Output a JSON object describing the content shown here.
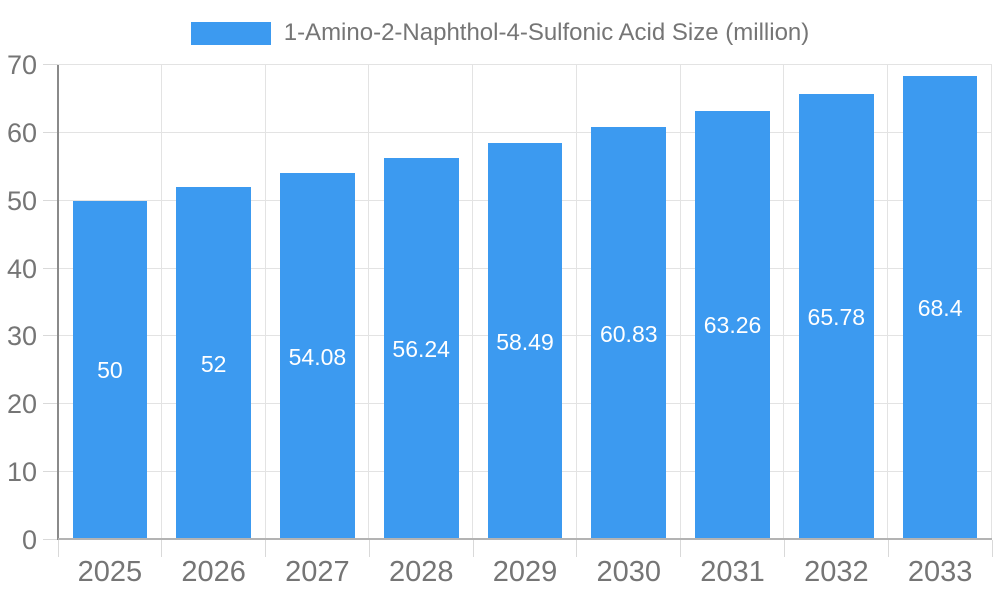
{
  "chart_data": {
    "type": "bar",
    "title": "",
    "legend_label": "1-Amino-2-Naphthol-4-Sulfonic Acid Size (million)",
    "legend_position": "top-center",
    "categories": [
      "2025",
      "2026",
      "2027",
      "2028",
      "2029",
      "2030",
      "2031",
      "2032",
      "2033"
    ],
    "series": [
      {
        "name": "1-Amino-2-Naphthol-4-Sulfonic Acid Size (million)",
        "values": [
          50,
          52,
          54.08,
          56.24,
          58.49,
          60.83,
          63.26,
          65.78,
          68.4
        ],
        "value_labels": [
          "50",
          "52",
          "54.08",
          "56.24",
          "58.49",
          "60.83",
          "63.26",
          "65.78",
          "68.4"
        ]
      }
    ],
    "xlabel": "",
    "ylabel": "",
    "ylim": [
      0,
      70
    ],
    "y_ticks": [
      0,
      10,
      20,
      30,
      40,
      50,
      60,
      70
    ],
    "grid": "both",
    "bar_label_position": "middle-inside",
    "colors": {
      "bar": "#3C9AF0",
      "bar_label": "#FFFFFF",
      "axis_text": "#757575",
      "gridline": "#E3E3E3",
      "y_axis_line": "#8A8A8A",
      "x_axis_line": "#B3B3B3",
      "tick_mark": "#D9D9D9"
    }
  }
}
